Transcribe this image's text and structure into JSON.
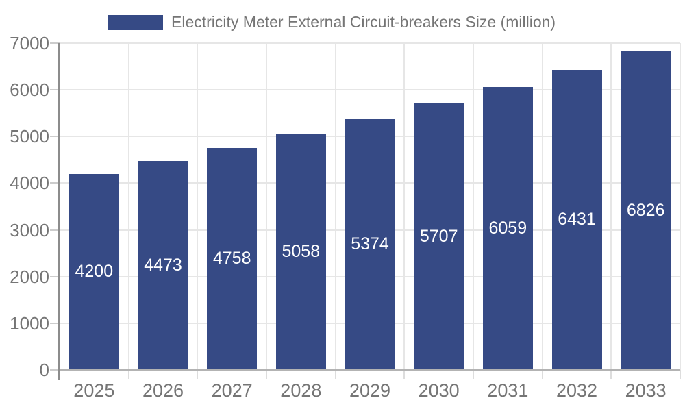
{
  "chart_data": {
    "type": "bar",
    "title": "Electricity Meter External Circuit-breakers Size (million)",
    "legend_position": "top",
    "categories": [
      "2025",
      "2026",
      "2027",
      "2028",
      "2029",
      "2030",
      "2031",
      "2032",
      "2033"
    ],
    "values": [
      4200,
      4473,
      4758,
      5058,
      5374,
      5707,
      6059,
      6431,
      6826
    ],
    "yticks": [
      "0",
      "1000",
      "2000",
      "3000",
      "4000",
      "5000",
      "6000",
      "7000"
    ],
    "ylim": [
      0,
      7000
    ],
    "y_tick_step": 1000,
    "grid": true,
    "xlabel": "",
    "ylabel": "",
    "bar_color": "#364A85",
    "label_color": "#FFFFFF",
    "axis_text_color": "#757575"
  }
}
